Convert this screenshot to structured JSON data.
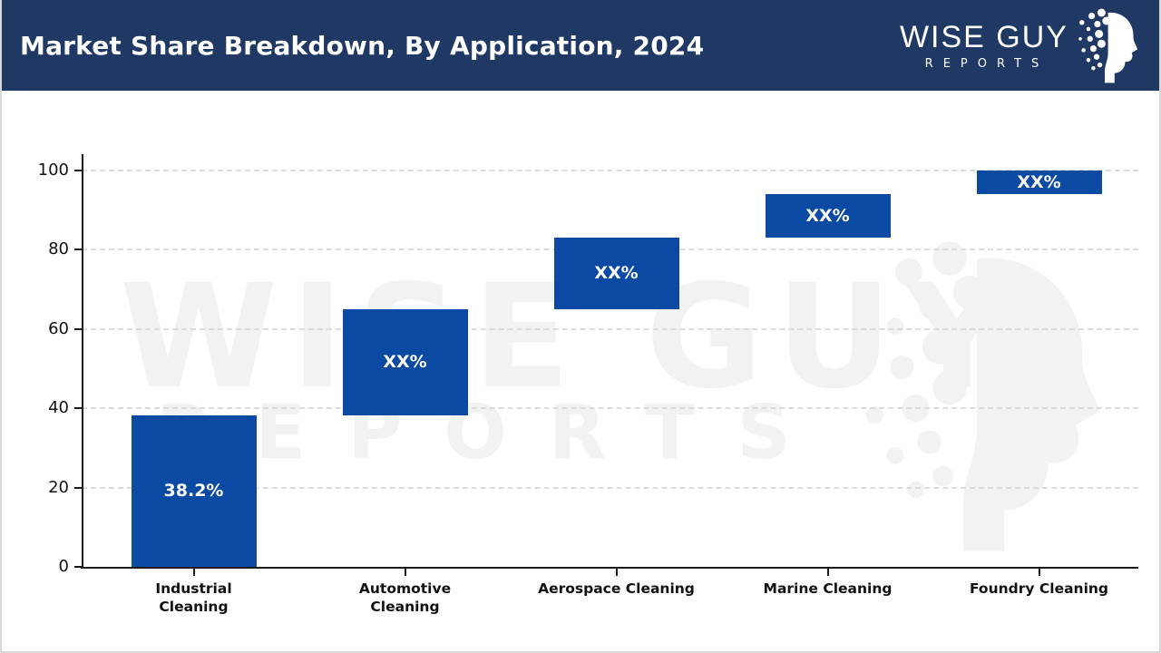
{
  "header": {
    "title": "Market Share Breakdown, By Application, 2024",
    "bg_color": "#1F3864",
    "logo": {
      "line1": "WISE GUY",
      "line2": "REPORTS"
    }
  },
  "watermark": {
    "line1": "WISE GUY",
    "line2": "REPORTS"
  },
  "chart_data": {
    "type": "bar",
    "subtype": "waterfall",
    "title": "Market Share Breakdown, By Application, 2024",
    "xlabel": "",
    "ylabel": "",
    "categories": [
      "Industrial\nCleaning",
      "Automotive\nCleaning",
      "Aerospace Cleaning",
      "Marine Cleaning",
      "Foundry Cleaning"
    ],
    "series": [
      {
        "name": "Market Share (%)",
        "segments": [
          {
            "category": "Industrial Cleaning",
            "start": 0,
            "end": 38.2,
            "label": "38.2%"
          },
          {
            "category": "Automotive Cleaning",
            "start": 38.2,
            "end": 65,
            "label": "XX%"
          },
          {
            "category": "Aerospace Cleaning",
            "start": 65,
            "end": 83,
            "label": "XX%"
          },
          {
            "category": "Marine Cleaning",
            "start": 83,
            "end": 94,
            "label": "XX%"
          },
          {
            "category": "Foundry Cleaning",
            "start": 94,
            "end": 100,
            "label": "XX%"
          }
        ]
      }
    ],
    "ylim": [
      0,
      104
    ],
    "yticks": [
      0,
      20,
      40,
      60,
      80,
      100
    ],
    "grid": "horizontal-dashed",
    "legend": "none",
    "bar_color": "#0B4AA2",
    "bar_label_color": "#FFFFFF",
    "axis_color": "#1A1A1A",
    "grid_color": "#DCDCDC"
  }
}
